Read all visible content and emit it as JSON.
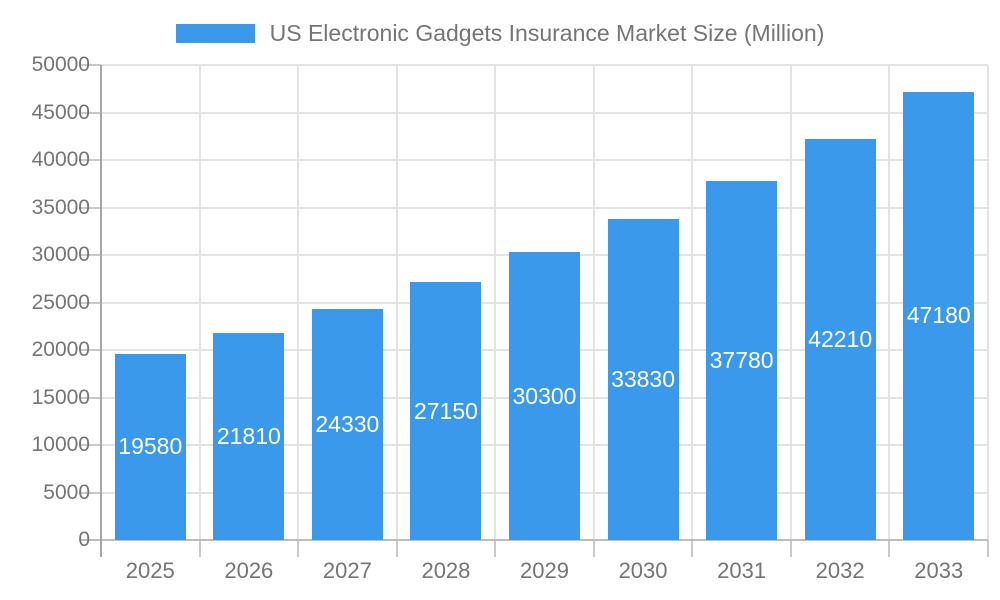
{
  "legend": {
    "label": "US Electronic Gadgets Insurance Market Size (Million)"
  },
  "chart_data": {
    "type": "bar",
    "title": "US Electronic Gadgets Insurance Market Size (Million)",
    "categories": [
      "2025",
      "2026",
      "2027",
      "2028",
      "2029",
      "2030",
      "2031",
      "2032",
      "2033"
    ],
    "values": [
      19580,
      21810,
      24330,
      27150,
      30300,
      33830,
      37780,
      42210,
      47180
    ],
    "xlabel": "",
    "ylabel": "",
    "ylim": [
      0,
      50000
    ],
    "ytick_step": 5000,
    "ytick_labels": [
      "0",
      "5000",
      "10000",
      "15000",
      "20000",
      "25000",
      "30000",
      "35000",
      "40000",
      "45000",
      "50000"
    ],
    "grid": true,
    "legend_position": "top",
    "value_labels": "inside-center-white"
  },
  "colors": {
    "bar": "#3B99EC",
    "grid": "#E3E3E3",
    "y_axis_line": "#A6A6A6",
    "baseline": "#BDBDBD",
    "tick": "#C9C9C9",
    "axis_text": "#757575",
    "bar_label": "#FFFFFF",
    "background": "#FFFFFF"
  }
}
